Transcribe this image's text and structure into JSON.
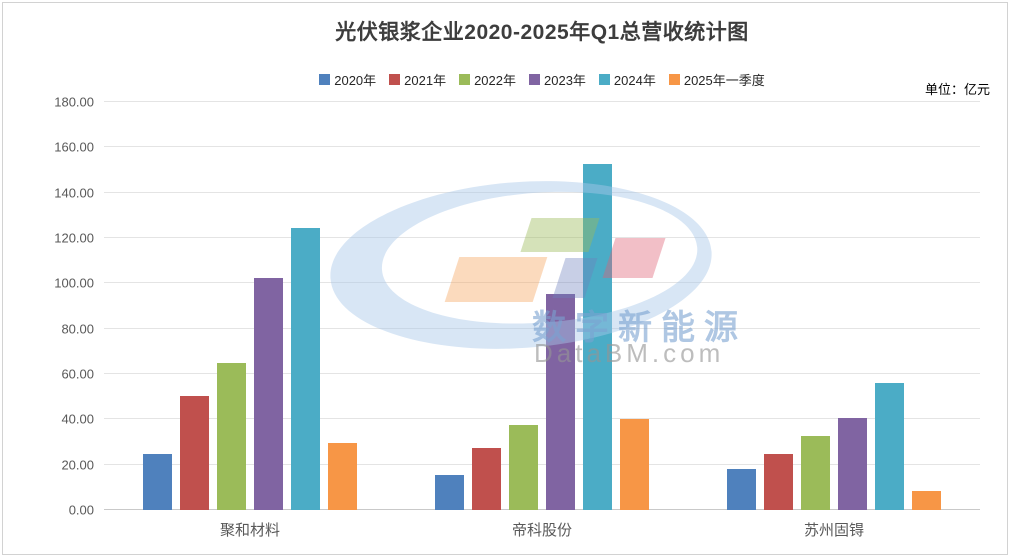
{
  "chart_data": {
    "type": "bar",
    "title": "光伏银浆企业2020-2025年Q1总营收统计图",
    "unit_label": "单位：亿元",
    "categories": [
      "聚和材料",
      "帝科股份",
      "苏州固锝"
    ],
    "series": [
      {
        "name": "2020年",
        "color": "#4F81BD",
        "values": [
          24.5,
          15.5,
          18.0
        ]
      },
      {
        "name": "2021年",
        "color": "#C0504D",
        "values": [
          50.5,
          27.5,
          24.5
        ]
      },
      {
        "name": "2022年",
        "color": "#9BBB59",
        "values": [
          65.0,
          37.5,
          32.5
        ]
      },
      {
        "name": "2023年",
        "color": "#8064A2",
        "values": [
          102.5,
          95.5,
          40.5
        ]
      },
      {
        "name": "2024年",
        "color": "#4BACC6",
        "values": [
          124.5,
          152.5,
          56.0
        ]
      },
      {
        "name": "2025年一季度",
        "color": "#F79646",
        "values": [
          29.5,
          40.0,
          8.5
        ]
      }
    ],
    "ylim": [
      0,
      180
    ],
    "ystep": 20,
    "ytick_format": "two-decimals",
    "grid": true,
    "legend_position": "top-center",
    "watermark": {
      "line1": "数字新能源",
      "line2": "DataBM.com"
    }
  }
}
